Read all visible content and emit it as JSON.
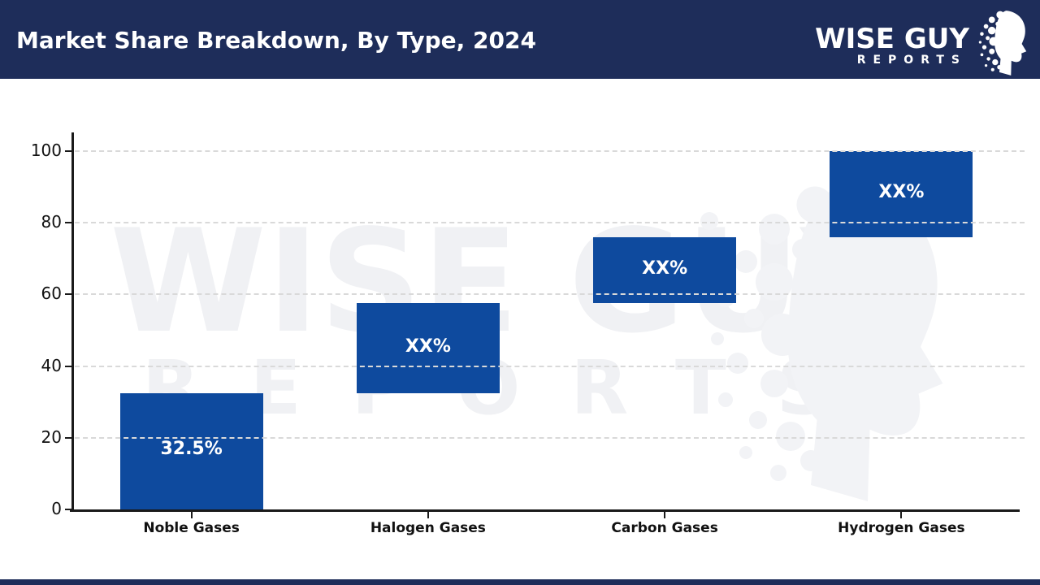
{
  "header": {
    "title": "Market Share Breakdown, By Type, 2024",
    "logo_primary": "WISE GUY",
    "logo_secondary": "REPORTS"
  },
  "watermark": {
    "primary": "WISE GUY",
    "secondary": "REPORTS"
  },
  "chart_data": {
    "type": "bar",
    "subtype": "waterfall",
    "title": "Market Share Breakdown, By Type, 2024",
    "categories": [
      "Noble Gases",
      "Halogen Gases",
      "Carbon Gases",
      "Hydrogen Gases"
    ],
    "bars": [
      {
        "category": "Noble Gases",
        "start": 0,
        "end": 32.5,
        "label": "32.5%"
      },
      {
        "category": "Halogen Gases",
        "start": 32.5,
        "end": 57.5,
        "label": "XX%"
      },
      {
        "category": "Carbon Gases",
        "start": 57.5,
        "end": 76,
        "label": "XX%"
      },
      {
        "category": "Hydrogen Gases",
        "start": 76,
        "end": 100,
        "label": "XX%"
      }
    ],
    "y_ticks": [
      0,
      20,
      40,
      60,
      80,
      100
    ],
    "ylim": [
      0,
      105
    ],
    "xlabel": "",
    "ylabel": "",
    "grid": "horizontal-dashed",
    "legend": "none",
    "bar_color": "#0e4a9e",
    "label_color": "#ffffff"
  },
  "colors": {
    "header_bg": "#1e2d5a",
    "footer_bg": "#1e2d5a",
    "bar": "#0e4a9e",
    "grid": "#d9d9d9",
    "axis": "#1a1a1a",
    "watermark": "#f0f1f4"
  }
}
